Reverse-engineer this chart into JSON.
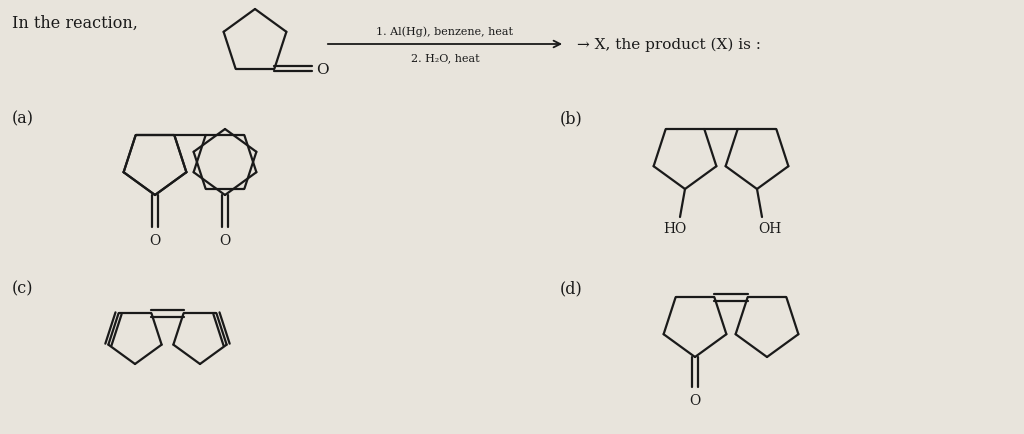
{
  "bg_color": "#e8e4dc",
  "text_color": "#1a1a1a",
  "title_text": "In the reaction,",
  "reaction_step1": "1. Al(Hg), benzene, heat",
  "reaction_step2": "2. H₂O, heat",
  "x_product_text": "X, the product (X) is :",
  "label_a": "(a)",
  "label_b": "(b)",
  "label_c": "(c)",
  "label_d": "(d)",
  "label_ho": "HO",
  "label_oh": "OH",
  "lw": 1.6
}
